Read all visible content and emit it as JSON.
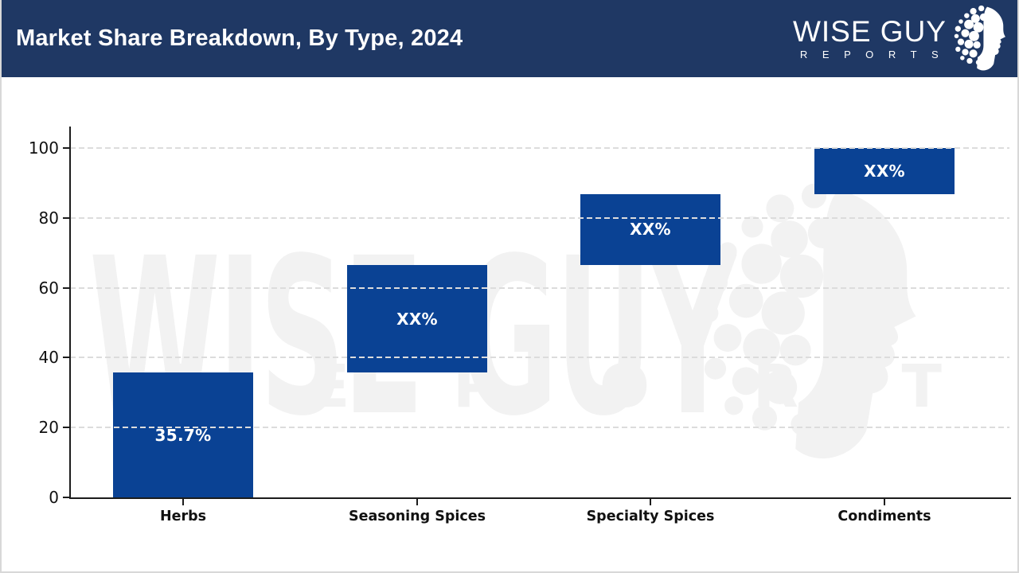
{
  "header": {
    "title": "Market Share Breakdown, By Type, 2024",
    "logo": {
      "wordmark": "WISE GUY",
      "subtitle": "R E P O R T S"
    }
  },
  "watermark": {
    "wordmark": "WISE GUY",
    "subtitle": "R E P O R T S"
  },
  "colors": {
    "header_bg": "#1F3864",
    "bar_fill": "#0A4294",
    "bar_label_text": "#FFFFFF",
    "axis_text": "#111111",
    "gridline": "#DCDCDC",
    "watermark": "#F2F2F2"
  },
  "chart_data": {
    "type": "bar",
    "subtype": "waterfall",
    "title": "Market Share Breakdown, By Type, 2024",
    "categories": [
      "Herbs",
      "Seasoning Spices",
      "Specialty Spices",
      "Condiments"
    ],
    "series": [
      {
        "name": "Market share by type (%)",
        "segments": [
          {
            "category": "Herbs",
            "start": 0,
            "end": 35.7,
            "label": "35.7%"
          },
          {
            "category": "Seasoning Spices",
            "start": 35.7,
            "end": 66.5,
            "label": "XX%"
          },
          {
            "category": "Specialty Spices",
            "start": 66.5,
            "end": 86.8,
            "label": "XX%"
          },
          {
            "category": "Condiments",
            "start": 86.8,
            "end": 100,
            "label": "XX%"
          }
        ]
      }
    ],
    "xlabel": "",
    "ylabel": "",
    "ylim": [
      0,
      106
    ],
    "yticks": [
      0,
      20,
      40,
      60,
      80,
      100
    ],
    "grid": "horizontal-dashed",
    "grid_above_bars": true,
    "legend": "none",
    "bar_color": "#0A4294"
  }
}
